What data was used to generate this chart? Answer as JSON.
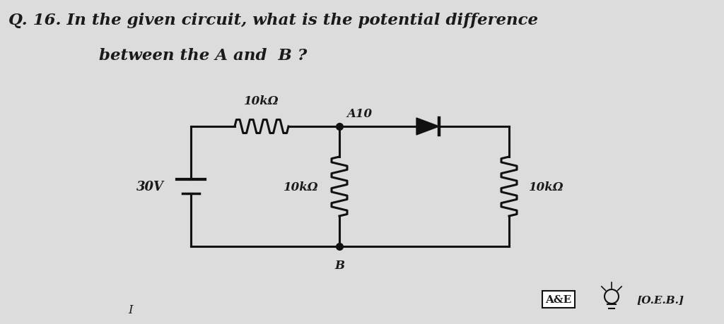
{
  "title_line1": "Q. 16. In the given circuit, what is the potential difference",
  "title_line2": "between the A and  B ?",
  "background_color": "#dcdcdc",
  "text_color": "#1a1a1a",
  "circuit_color": "#111111",
  "voltage_label": "30V",
  "resistor_top_label": "10kΩ",
  "resistor_mid_label": "10kΩ",
  "resistor_right_label": "10kΩ",
  "node_a_label": "A10",
  "node_b_label": "B",
  "footer_left": "A&E",
  "footer_right": "[O.E.B.]",
  "fig_width": 10.24,
  "fig_height": 4.6,
  "dpi": 100
}
